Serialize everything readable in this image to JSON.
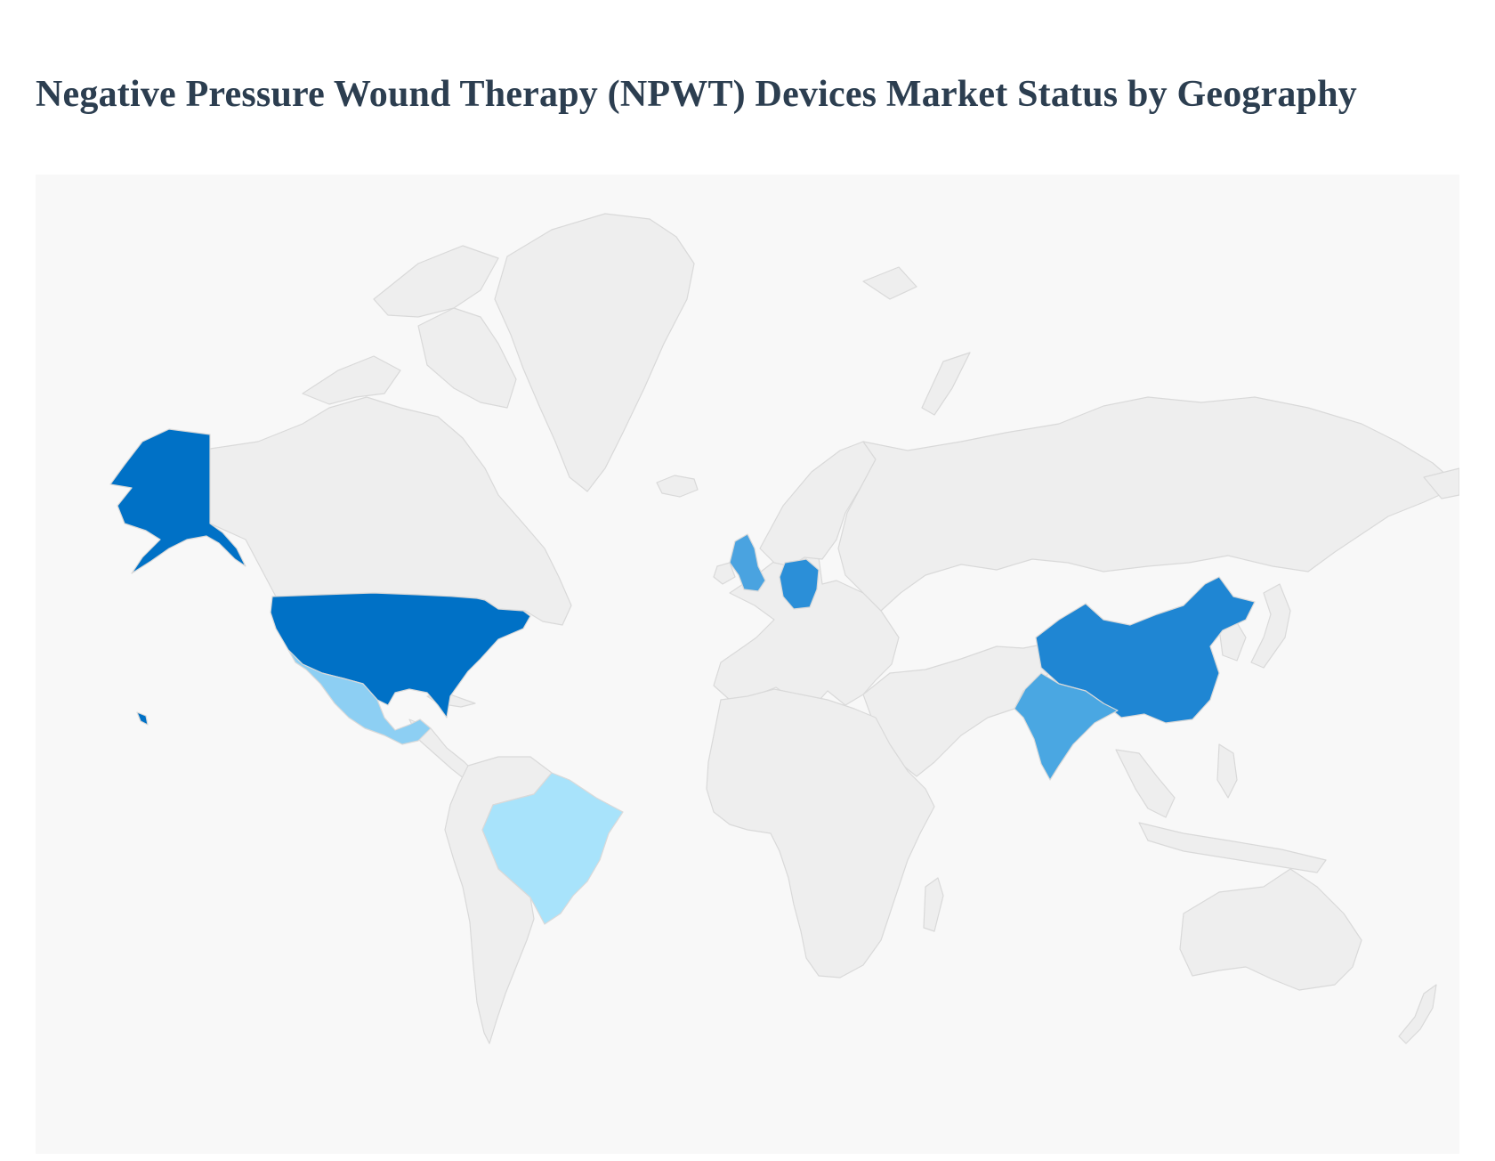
{
  "page": {
    "title": "Negative Pressure Wound Therapy (NPWT) Devices Market Status by Geography"
  },
  "map": {
    "type": "choropleth-world",
    "background_color": "#f8f8f8",
    "neutral_country_color": "#eeeeee",
    "border_color": "#d9d9d9",
    "highlighted_countries": [
      {
        "country": "United States",
        "level": 1.0,
        "color": "#0071c6"
      },
      {
        "country": "China",
        "level": 0.85,
        "color": "#1f86d3"
      },
      {
        "country": "Germany",
        "level": 0.8,
        "color": "#2b8fd8"
      },
      {
        "country": "United Kingdom",
        "level": 0.7,
        "color": "#4aa3e0"
      },
      {
        "country": "India",
        "level": 0.7,
        "color": "#4aa7e2"
      },
      {
        "country": "Mexico",
        "level": 0.45,
        "color": "#8dcff3"
      },
      {
        "country": "Brazil",
        "level": 0.3,
        "color": "#a8e3fb"
      }
    ]
  }
}
